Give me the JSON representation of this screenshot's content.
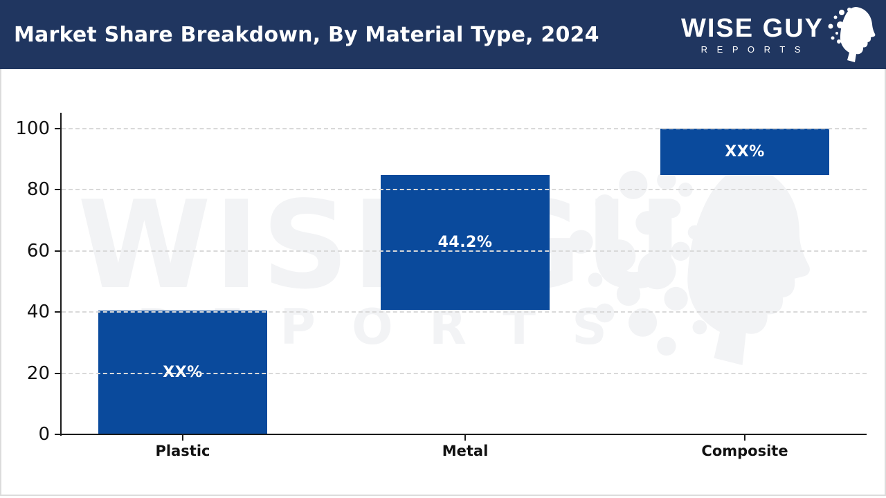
{
  "header": {
    "title": "Market Share Breakdown, By Material Type, 2024",
    "logo": {
      "wordmark": "WISE GUY",
      "subtext": "R E P O R T S"
    }
  },
  "watermark": {
    "wordmark": "WISE GU",
    "subtext": "R E P O R T S"
  },
  "chart_data": {
    "type": "bar",
    "subtype": "waterfall",
    "title": "Market Share Breakdown, By Material Type, 2024",
    "categories": [
      "Plastic",
      "Metal",
      "Composite"
    ],
    "segments": [
      {
        "category": "Plastic",
        "start": 0,
        "end": 40.5,
        "label": "XX%"
      },
      {
        "category": "Metal",
        "start": 40.7,
        "end": 84.9,
        "label": "44.2%"
      },
      {
        "category": "Composite",
        "start": 84.9,
        "end": 100,
        "label": "XX%"
      }
    ],
    "ylim": [
      0,
      100
    ],
    "yticks": [
      0,
      20,
      40,
      60,
      80,
      100
    ],
    "xlabel": "",
    "ylabel": "",
    "grid": "horizontal-dashed",
    "legend": "none",
    "colors": {
      "bar": "#0a4a9c",
      "header_bg": "#203660",
      "gridline": "#d9d9d9",
      "axis": "#1a1a1a",
      "bar_label_text": "#ffffff",
      "watermark": "#f2f3f5"
    }
  }
}
